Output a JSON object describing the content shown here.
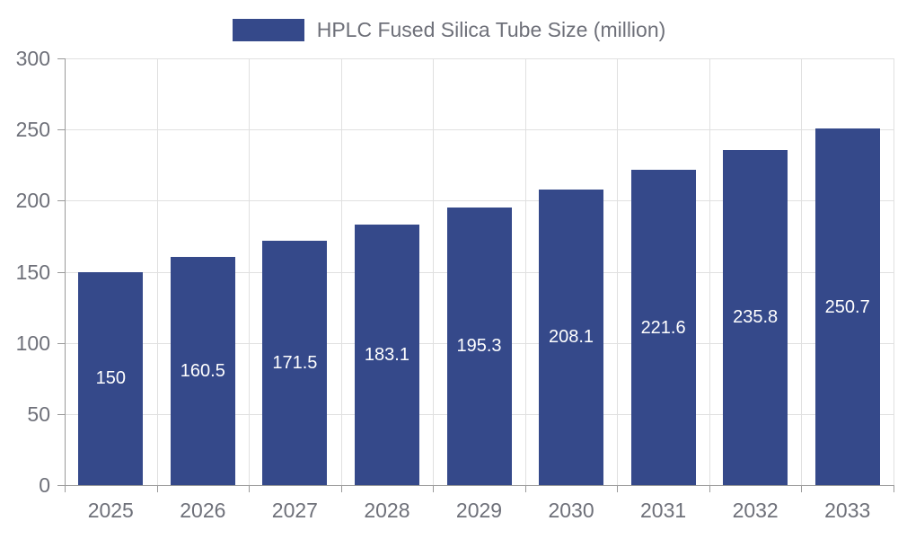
{
  "chart_data": {
    "type": "bar",
    "title": "HPLC Fused Silica Tube Size (million)",
    "categories": [
      "2025",
      "2026",
      "2027",
      "2028",
      "2029",
      "2030",
      "2031",
      "2032",
      "2033"
    ],
    "values": [
      150,
      160.5,
      171.5,
      183.1,
      195.3,
      208.1,
      221.6,
      235.8,
      250.7
    ],
    "value_labels": [
      "150",
      "160.5",
      "171.5",
      "183.1",
      "195.3",
      "208.1",
      "221.6",
      "235.8",
      "250.7"
    ],
    "xlabel": "",
    "ylabel": "",
    "ylim": [
      0,
      300
    ],
    "yticks": [
      0,
      50,
      100,
      150,
      200,
      250,
      300
    ],
    "grid": true,
    "legend_position": "top-center",
    "colors": {
      "bar": "#35498a",
      "bar_label": "#ffffff",
      "axis_text": "#6e7079",
      "grid": "#e0e0e0",
      "axis_line": "#9a9a9a"
    }
  }
}
